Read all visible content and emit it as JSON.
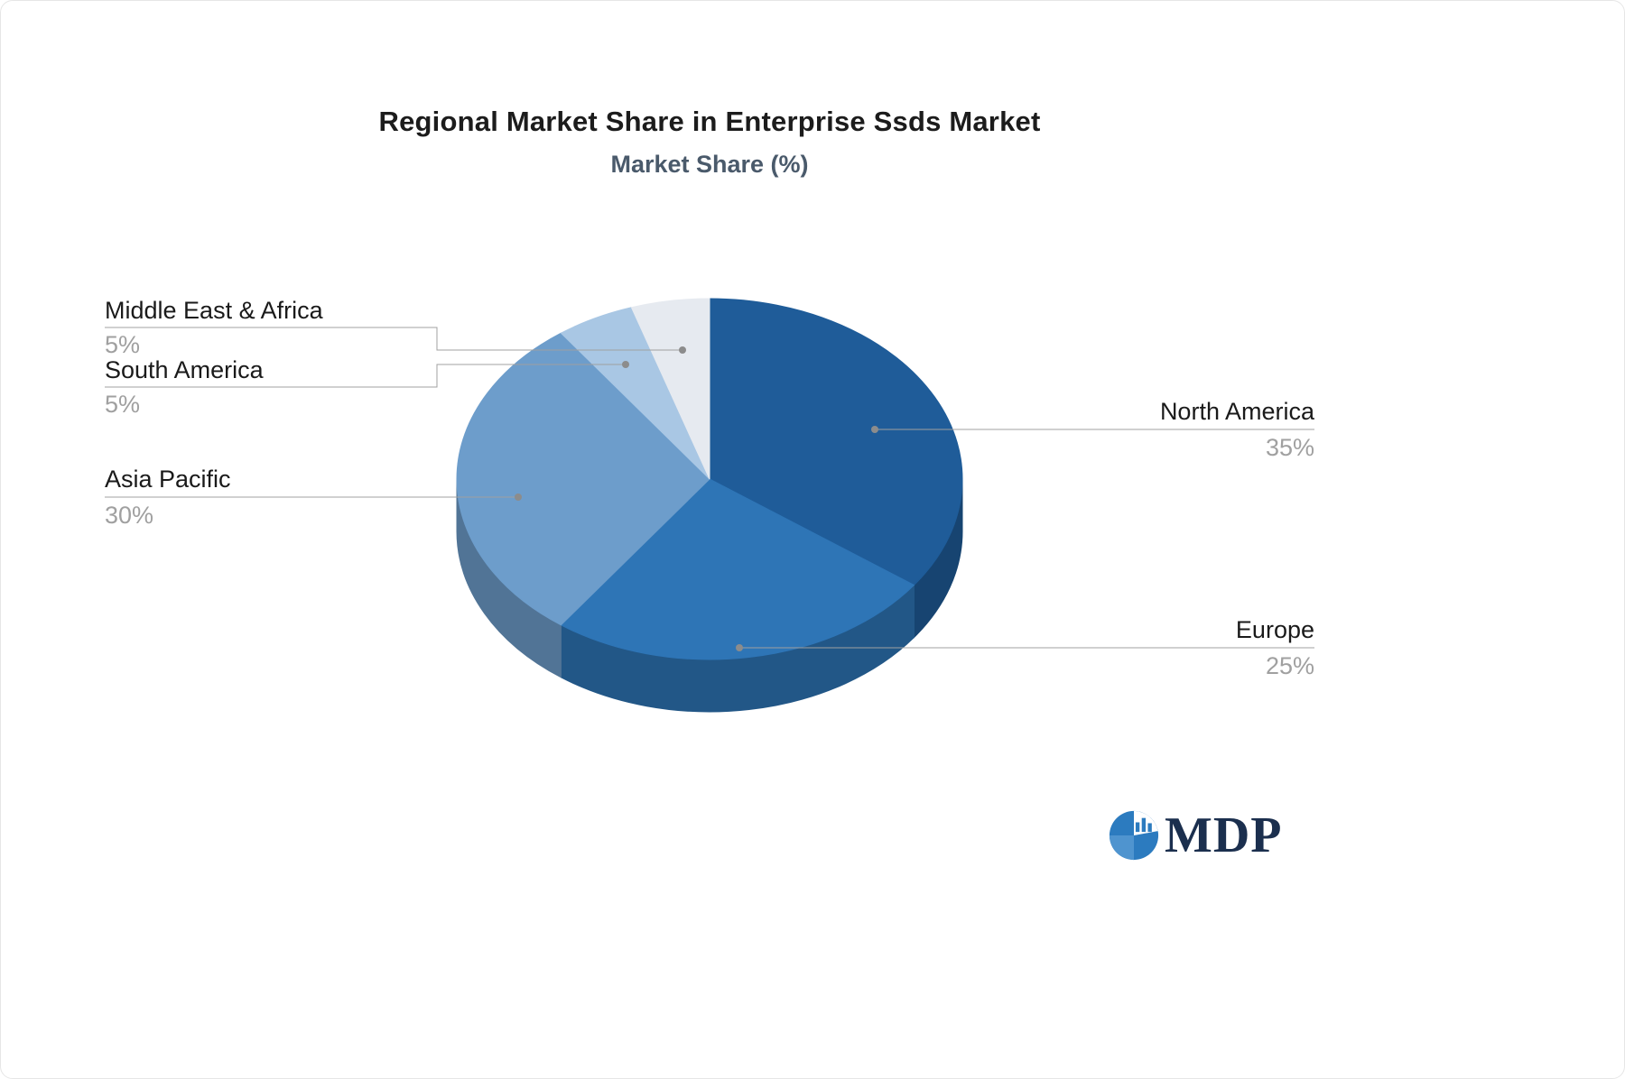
{
  "page": {
    "background": "#ffffff"
  },
  "chart_data": {
    "type": "pie",
    "title": "Regional Market Share in Enterprise Ssds Market",
    "subtitle": "Market Share (%)",
    "unit": "%",
    "effect": "3d",
    "start_angle_deg": -90,
    "direction": "clockwise",
    "legend": "none",
    "labels": [
      "North America",
      "Europe",
      "Asia Pacific",
      "South America",
      "Middle East & Africa"
    ],
    "values": [
      35,
      25,
      30,
      5,
      5
    ],
    "display_values": [
      "35%",
      "25%",
      "30%",
      "5%",
      "5%"
    ],
    "colors": [
      "#1f5c99",
      "#2e75b6",
      "#6d9dcb",
      "#a9c7e4",
      "#e6eaf0"
    ],
    "leader_line_color": "#a0a0a0",
    "dot_color": "#8c8c8c",
    "label_color": "#1a1a1a",
    "value_color": "#a0a0a0"
  },
  "logo": {
    "text": "MDP",
    "icon": "pie-bar-chart-icon",
    "text_color": "#1b2f4e",
    "icon_color": "#2c7bbf"
  }
}
